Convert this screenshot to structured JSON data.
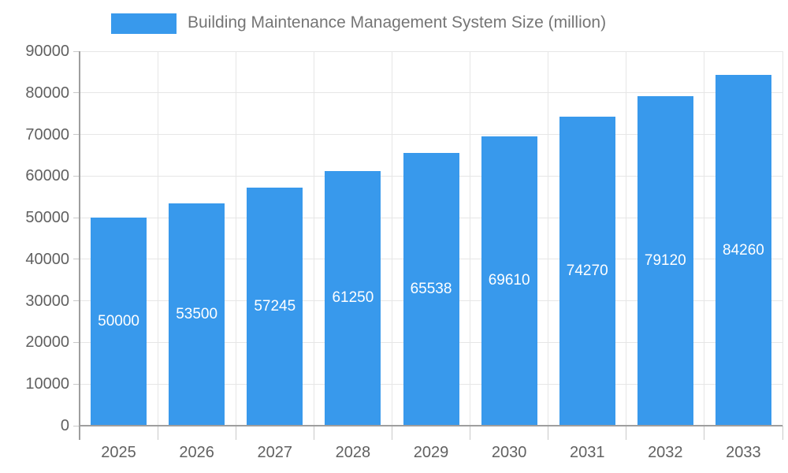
{
  "legend": {
    "label": "Building Maintenance Management System Size (million)"
  },
  "chart_data": {
    "type": "bar",
    "title": "Building Maintenance Management System Size (million)",
    "categories": [
      "2025",
      "2026",
      "2027",
      "2028",
      "2029",
      "2030",
      "2031",
      "2032",
      "2033"
    ],
    "series": [
      {
        "name": "Building Maintenance Management System Size (million)",
        "values": [
          50000,
          53500,
          57245,
          61250,
          65538,
          69610,
          74270,
          79120,
          84260
        ]
      }
    ],
    "value_labels": [
      "50000",
      "53500",
      "57245",
      "61250",
      "65538",
      "69610",
      "74270",
      "79120",
      "84260"
    ],
    "xlabel": "",
    "ylabel": "",
    "ylim": [
      0,
      90000
    ],
    "y_tick_step": 10000,
    "y_tick_labels": [
      "0",
      "10000",
      "20000",
      "30000",
      "40000",
      "50000",
      "60000",
      "70000",
      "80000",
      "90000"
    ],
    "grid": true,
    "legend_position": "top"
  },
  "colors": {
    "bar": "#3899EC",
    "axis": "#9E9E9E",
    "gridline": "#E6E6E6",
    "tick": "#C9C9C9",
    "tick_text": "#616161",
    "legend_text": "#757575",
    "value_text": "#FFFFFF",
    "background": "#FFFFFF"
  }
}
